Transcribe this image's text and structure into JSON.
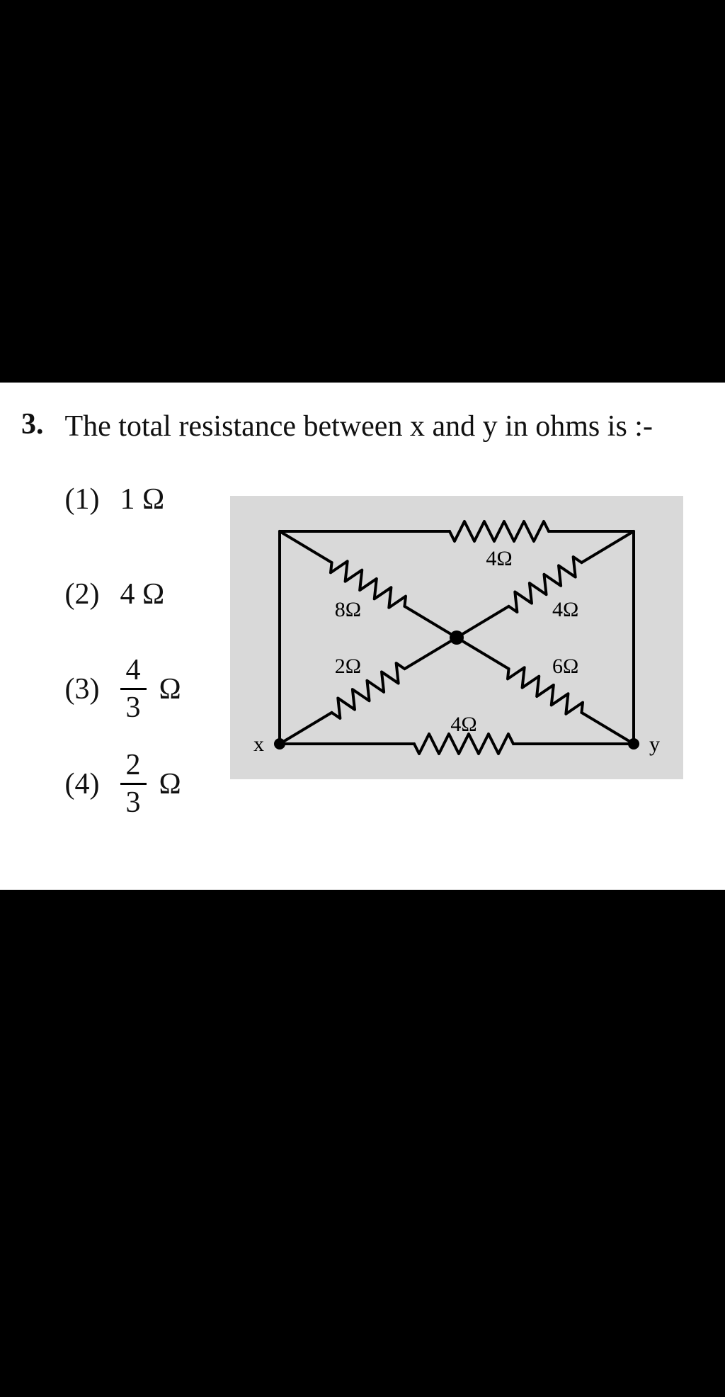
{
  "question": {
    "number": "3.",
    "text": "The total resistance between x and y in ohms is  :-"
  },
  "options": [
    {
      "label": "(1)",
      "value": "1 Ω"
    },
    {
      "label": "(2)",
      "value": "4 Ω"
    },
    {
      "label": "(3)",
      "frac_num": "4",
      "frac_den": "3",
      "unit": "Ω"
    },
    {
      "label": "(4)",
      "frac_num": "2",
      "frac_den": "3",
      "unit": "Ω"
    }
  ],
  "circuit": {
    "type": "network",
    "background_color": "#d9d9d9",
    "wire_color": "#000000",
    "wire_width": 4,
    "node_radius": 8,
    "terminals": {
      "left": "x",
      "right": "y"
    },
    "resistors": {
      "top": {
        "value": "4Ω"
      },
      "bottom": {
        "value": "4Ω"
      },
      "diag_tl": {
        "value": "8Ω"
      },
      "diag_tr": {
        "value": "4Ω"
      },
      "diag_bl": {
        "value": "2Ω"
      },
      "diag_br": {
        "value": "6Ω"
      }
    }
  },
  "colors": {
    "page_bg": "#000000",
    "paper_bg": "#ffffff",
    "text": "#111111"
  }
}
